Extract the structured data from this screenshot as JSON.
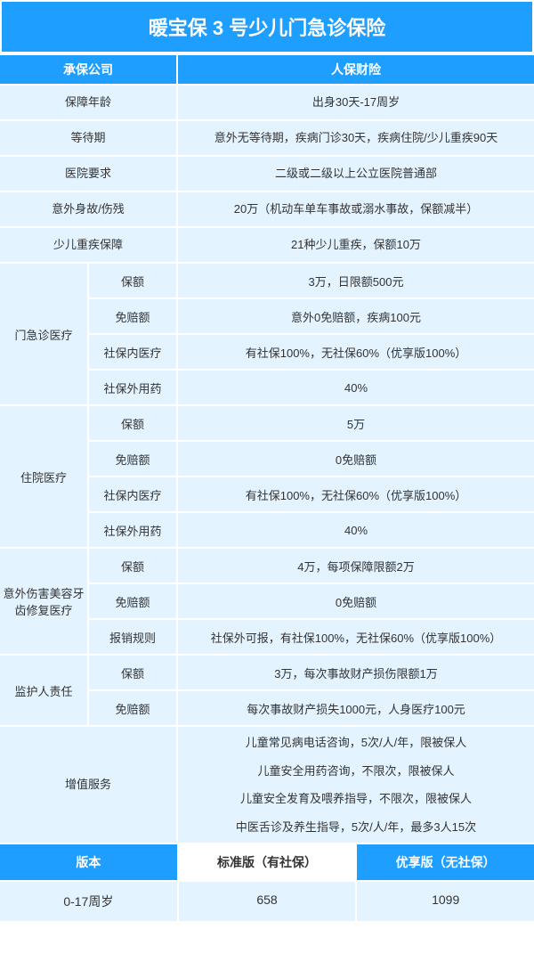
{
  "title": "暖宝保 3 号少儿门急诊保险",
  "header": {
    "left": "承保公司",
    "right": "人保财险"
  },
  "basic": [
    {
      "label": "保障年龄",
      "value": "出身30天-17周岁"
    },
    {
      "label": "等待期",
      "value": "意外无等待期，疾病门诊30天，疾病住院/少儿重疾90天"
    },
    {
      "label": "医院要求",
      "value": "二级或二级以上公立医院普通部"
    },
    {
      "label": "意外身故/伤残",
      "value": "20万（机动车单车事故或溺水事故，保额减半）"
    },
    {
      "label": "少儿重疾保障",
      "value": "21种少儿重疾，保额10万"
    }
  ],
  "outpatient": {
    "label": "门急诊医疗",
    "items": [
      {
        "label": "保额",
        "value": "3万，日限额500元"
      },
      {
        "label": "免赔额",
        "value": "意外0免赔额，疾病100元"
      },
      {
        "label": "社保内医疗",
        "value": "有社保100%，无社保60%（优享版100%）"
      },
      {
        "label": "社保外用药",
        "value": "40%"
      }
    ]
  },
  "inpatient": {
    "label": "住院医疗",
    "items": [
      {
        "label": "保额",
        "value": "5万"
      },
      {
        "label": "免赔额",
        "value": "0免赔额"
      },
      {
        "label": "社保内医疗",
        "value": "有社保100%，无社保60%（优享版100%）"
      },
      {
        "label": "社保外用药",
        "value": "40%"
      }
    ]
  },
  "cosmetic": {
    "label": "意外伤害美容牙齿修复医疗",
    "items": [
      {
        "label": "保额",
        "value": "4万，每项保障限额2万"
      },
      {
        "label": "免赔额",
        "value": "0免赔额"
      },
      {
        "label": "报销规则",
        "value": "社保外可报，有社保100%，无社保60%（优享版100%）"
      }
    ]
  },
  "guardian": {
    "label": "监护人责任",
    "items": [
      {
        "label": "保额",
        "value": "3万，每次事故财产损伤限额1万"
      },
      {
        "label": "免赔额",
        "value": "每次事故财产损失1000元，人身医疗100元"
      }
    ]
  },
  "services": {
    "label": "增值服务",
    "lines": [
      "儿童常见病电话咨询，5次/人/年，限被保人",
      "儿童安全用药咨询，不限次，限被保人",
      "儿童安全发育及喂养指导，不限次，限被保人",
      "中医舌诊及养生指导，5次/人/年，最多3人15次"
    ]
  },
  "versions": {
    "col1": "版本",
    "col2": "标准版（有社保）",
    "col3": "优享版（无社保）"
  },
  "pricing": {
    "age": "0-17周岁",
    "standard": "658",
    "premium": "1099"
  }
}
